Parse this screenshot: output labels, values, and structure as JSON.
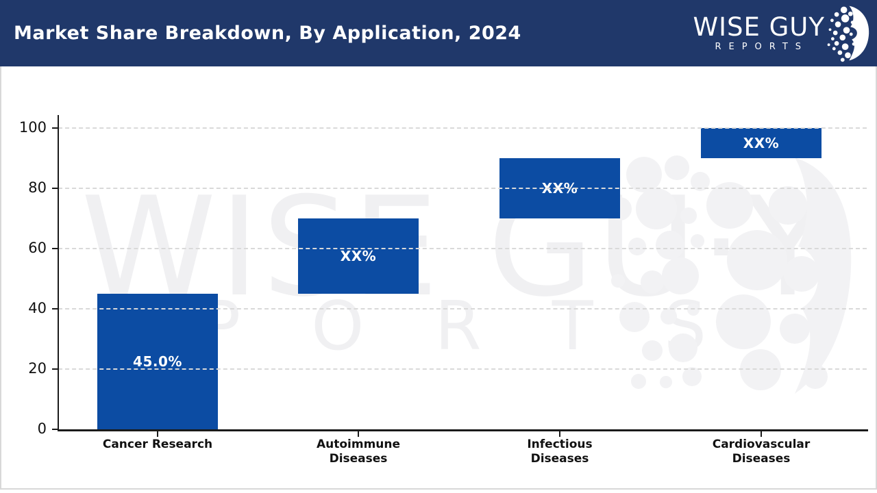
{
  "header": {
    "title": "Market Share Breakdown, By Application, 2024",
    "logo": {
      "name": "WISE GUY",
      "sub": "REPORTS"
    }
  },
  "watermark": {
    "line1": "WISE GU·Y",
    "line2": "P O R T S"
  },
  "chart_data": {
    "type": "bar",
    "subtype": "waterfall",
    "title": "Market Share Breakdown, By Application, 2024",
    "categories": [
      "Cancer Research",
      "Autoimmune\nDiseases",
      "Infectious\nDiseases",
      "Cardiovascular\nDiseases"
    ],
    "segments": [
      {
        "category": "Cancer Research",
        "start": 0,
        "end": 45,
        "label": "45.0%"
      },
      {
        "category": "Autoimmune Diseases",
        "start": 45,
        "end": 70,
        "label": "XX%"
      },
      {
        "category": "Infectious Diseases",
        "start": 70,
        "end": 90,
        "label": "XX%"
      },
      {
        "category": "Cardiovascular Diseases",
        "start": 90,
        "end": 100,
        "label": "XX%"
      }
    ],
    "ylim": [
      0,
      100
    ],
    "yticks": [
      0,
      20,
      40,
      60,
      80,
      100
    ],
    "grid": "horizontal-dashed",
    "legend": "none",
    "colors": {
      "bar": "#0c4ca3",
      "bar_label": "#ffffff",
      "axis": "#1a1a1a",
      "gridline": "#d9d9d9",
      "header_bg": "#20386a",
      "header_text": "#ffffff",
      "watermark": "#f0f0f2"
    }
  }
}
